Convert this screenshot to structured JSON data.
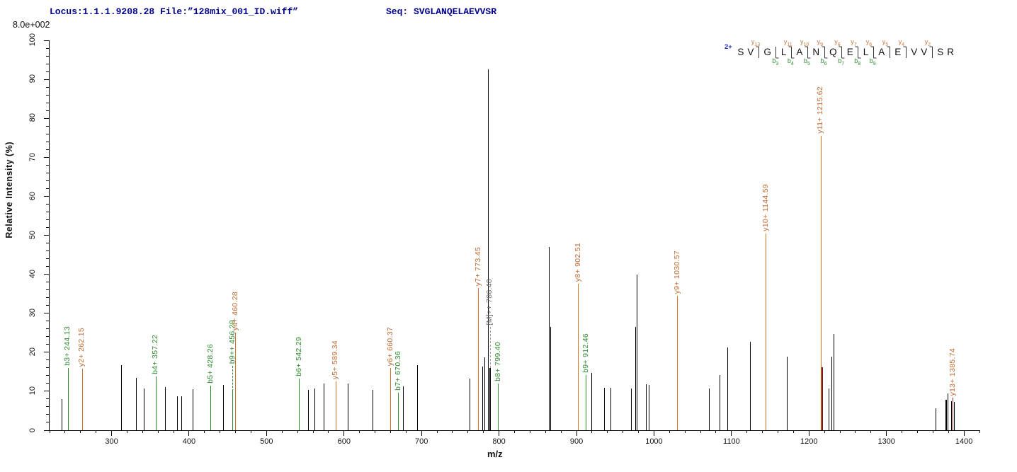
{
  "header": {
    "locus_file": "Locus:1.1.1.9208.28 File:”128mix_001_ID.wiff”",
    "seq_label": "Seq: SVGLANQELAEVVSR",
    "scale_label": "8.0e+002"
  },
  "colors": {
    "axis": "#000000",
    "peak_default": "#000000",
    "b_ion": "#2e8b2e",
    "y_ion_line": "#d2721e",
    "y_ion_text": "#c06a30",
    "y_ion_dark_line": "#8b2a2a",
    "precursor_label": "#666666",
    "overlap_dark": "#7a1f1f",
    "header_text": "#00008b",
    "charge_text": "#2233bb"
  },
  "sequence_annotation": {
    "charge": "2+",
    "residues": "SVGLANQELAEVVSR",
    "cuts": [
      {
        "after": 2,
        "y": 13
      },
      {
        "after": 3,
        "b": 3
      },
      {
        "after": 4,
        "y": 11,
        "b": 4
      },
      {
        "after": 5,
        "y": 10,
        "b": 5
      },
      {
        "after": 6,
        "y": 9,
        "b": 6
      },
      {
        "after": 7,
        "y": 8,
        "b": 7
      },
      {
        "after": 8,
        "y": 7,
        "b": 8
      },
      {
        "after": 9,
        "y": 6,
        "b": 9
      },
      {
        "after": 10,
        "y": 5
      },
      {
        "after": 11,
        "y": 4
      },
      {
        "after": 13,
        "y": 2
      }
    ]
  },
  "chart_data": {
    "type": "bar",
    "subtype": "mass-spectrum-stick-plot",
    "title": "",
    "xlabel": "m/z",
    "ylabel": "Relative  Intensity (%)",
    "xlim": [
      220,
      1420
    ],
    "ylim": [
      0,
      100
    ],
    "x_major_tick": 100,
    "x_minor_tick": 20,
    "x_tick_labels": [
      300,
      400,
      500,
      600,
      700,
      800,
      900,
      1000,
      1100,
      1200,
      1300,
      1400
    ],
    "y_major_tick": 10,
    "y_minor_tick": 2,
    "y_tick_labels": [
      0,
      10,
      20,
      30,
      40,
      50,
      60,
      70,
      80,
      90,
      100
    ],
    "grid": false,
    "legend": "none",
    "peaks": [
      {
        "mz": 236.0,
        "pct": 8.0
      },
      {
        "mz": 244.13,
        "pct": 16.0,
        "ion": "b",
        "label": "b3+ 244.13"
      },
      {
        "mz": 262.15,
        "pct": 15.8,
        "ion": "y",
        "label": "y2+ 262.15"
      },
      {
        "mz": 313.0,
        "pct": 16.7
      },
      {
        "mz": 332.0,
        "pct": 13.4
      },
      {
        "mz": 342.0,
        "pct": 10.7
      },
      {
        "mz": 357.22,
        "pct": 13.8,
        "ion": "b",
        "label": "b4+ 357.22"
      },
      {
        "mz": 369.0,
        "pct": 11.1
      },
      {
        "mz": 385.0,
        "pct": 8.7
      },
      {
        "mz": 390.5,
        "pct": 8.7
      },
      {
        "mz": 405.0,
        "pct": 10.5
      },
      {
        "mz": 428.26,
        "pct": 11.4,
        "ion": "b",
        "label": "b5+ 428.26"
      },
      {
        "mz": 444.0,
        "pct": 11.6
      },
      {
        "mz": 456.29,
        "pct": 10.0,
        "ion": "b",
        "label": "b9++ 456.29",
        "dash_from_pct": 16.5
      },
      {
        "mz": 460.28,
        "pct": 25.0,
        "ion": "y",
        "label": "y4+ 460.28"
      },
      {
        "mz": 542.29,
        "pct": 13.2,
        "ion": "b",
        "label": "b6+ 542.29"
      },
      {
        "mz": 554.0,
        "pct": 10.3
      },
      {
        "mz": 562.0,
        "pct": 10.7
      },
      {
        "mz": 574.0,
        "pct": 12.0
      },
      {
        "mz": 589.34,
        "pct": 12.5,
        "ion": "y",
        "label": "y5+ 589.34"
      },
      {
        "mz": 605.0,
        "pct": 12.0
      },
      {
        "mz": 637.0,
        "pct": 10.4
      },
      {
        "mz": 660.37,
        "pct": 16.0,
        "ion": "y",
        "label": "y6+ 660.37"
      },
      {
        "mz": 670.36,
        "pct": 9.6,
        "ion": "b",
        "label": "b7+ 670.36"
      },
      {
        "mz": 676.5,
        "pct": 11.3
      },
      {
        "mz": 695.0,
        "pct": 16.7
      },
      {
        "mz": 762.5,
        "pct": 13.2
      },
      {
        "mz": 773.45,
        "pct": 36.5,
        "ion": "y",
        "label": "y7+ 773.45"
      },
      {
        "mz": 779.0,
        "pct": 16.3
      },
      {
        "mz": 781.5,
        "pct": 18.7
      },
      {
        "mz": 786.4,
        "pct": 92.5
      },
      {
        "mz": 788.5,
        "pct": 16.0,
        "ion": "M",
        "label": "[M]++ 786.40",
        "dash_from_pct": 26.5,
        "w": 2
      },
      {
        "mz": 799.4,
        "pct": 12.0,
        "ion": "b",
        "label": "b8+ 799.40"
      },
      {
        "mz": 864.5,
        "pct": 47.0
      },
      {
        "mz": 867.0,
        "pct": 26.5
      },
      {
        "mz": 902.51,
        "pct": 37.5,
        "ion": "y",
        "label": "y8+ 902.51"
      },
      {
        "mz": 912.46,
        "pct": 14.2,
        "ion": "b",
        "label": "b9+ 912.46"
      },
      {
        "mz": 920.0,
        "pct": 14.7
      },
      {
        "mz": 936.0,
        "pct": 10.9
      },
      {
        "mz": 944.0,
        "pct": 10.9
      },
      {
        "mz": 971.0,
        "pct": 10.8
      },
      {
        "mz": 976.5,
        "pct": 26.5
      },
      {
        "mz": 978.5,
        "pct": 40.0
      },
      {
        "mz": 990.0,
        "pct": 11.8
      },
      {
        "mz": 994.0,
        "pct": 11.6
      },
      {
        "mz": 1030.57,
        "pct": 34.5,
        "ion": "y",
        "label": "y9+ 1030.57"
      },
      {
        "mz": 1071.0,
        "pct": 10.7
      },
      {
        "mz": 1085.0,
        "pct": 14.2
      },
      {
        "mz": 1095.0,
        "pct": 21.2
      },
      {
        "mz": 1124.0,
        "pct": 22.7
      },
      {
        "mz": 1144.59,
        "pct": 50.5,
        "ion": "y",
        "label": "y10+ 1144.59"
      },
      {
        "mz": 1171.5,
        "pct": 18.8
      },
      {
        "mz": 1215.62,
        "pct": 75.5,
        "ion": "y",
        "label": "y11+ 1215.62"
      },
      {
        "mz": 1217.2,
        "pct": 16.2,
        "ion": "dark",
        "w": 2
      },
      {
        "mz": 1225.5,
        "pct": 10.8
      },
      {
        "mz": 1229.0,
        "pct": 18.8
      },
      {
        "mz": 1232.5,
        "pct": 24.7
      },
      {
        "mz": 1364.0,
        "pct": 5.6
      },
      {
        "mz": 1377.0,
        "pct": 7.8,
        "w": 2
      },
      {
        "mz": 1379.5,
        "pct": 9.4
      },
      {
        "mz": 1384.0,
        "pct": 7.4
      },
      {
        "mz": 1385.74,
        "pct": 8.3,
        "ion": "ydark",
        "label": "y13+ 1385.74"
      },
      {
        "mz": 1387.5,
        "pct": 7.3
      }
    ]
  }
}
